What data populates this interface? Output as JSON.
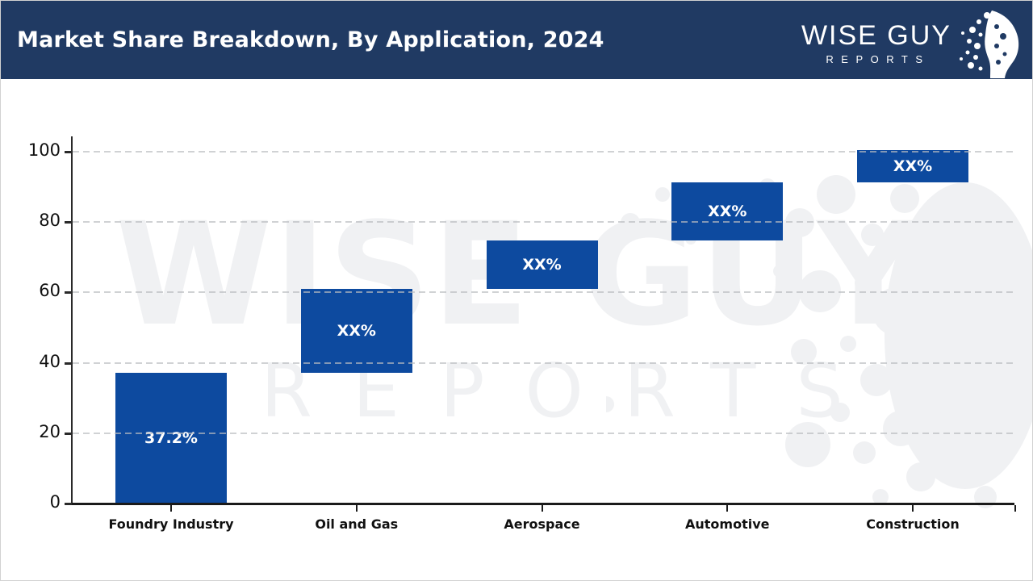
{
  "header": {
    "title": "Market Share Breakdown, By Application, 2024",
    "logo": {
      "line1": "WISE GUY",
      "line2": "REPORTS"
    }
  },
  "watermark": {
    "line1": "WISE GUY",
    "line2": "REPORTS"
  },
  "colors": {
    "header_bg": "#203a63",
    "bar_fill": "#0d4a9f",
    "bar_label": "#ffffff",
    "gridline": "#d9d9d9",
    "watermark": "#f0f1f3"
  },
  "chart_data": {
    "type": "bar",
    "subtype": "floating-waterfall",
    "title": "Market Share Breakdown, By Application, 2024",
    "xlabel": "",
    "ylabel": "",
    "categories": [
      "Foundry Industry",
      "Oil and Gas",
      "Aerospace",
      "Automotive",
      "Construction"
    ],
    "bars": [
      {
        "category": "Foundry Industry",
        "start": 0,
        "end": 37.2,
        "label": "37.2%"
      },
      {
        "category": "Oil and Gas",
        "start": 37.2,
        "end": 61.0,
        "label": "XX%"
      },
      {
        "category": "Aerospace",
        "start": 61.0,
        "end": 74.8,
        "label": "XX%"
      },
      {
        "category": "Automotive",
        "start": 74.8,
        "end": 91.2,
        "label": "XX%"
      },
      {
        "category": "Construction",
        "start": 91.2,
        "end": 100.4,
        "label": "XX%"
      }
    ],
    "yticks": [
      0,
      20,
      40,
      60,
      80,
      100
    ],
    "ylim": [
      0,
      104.4
    ],
    "grid": "horizontal-dashed",
    "legend": "none"
  }
}
